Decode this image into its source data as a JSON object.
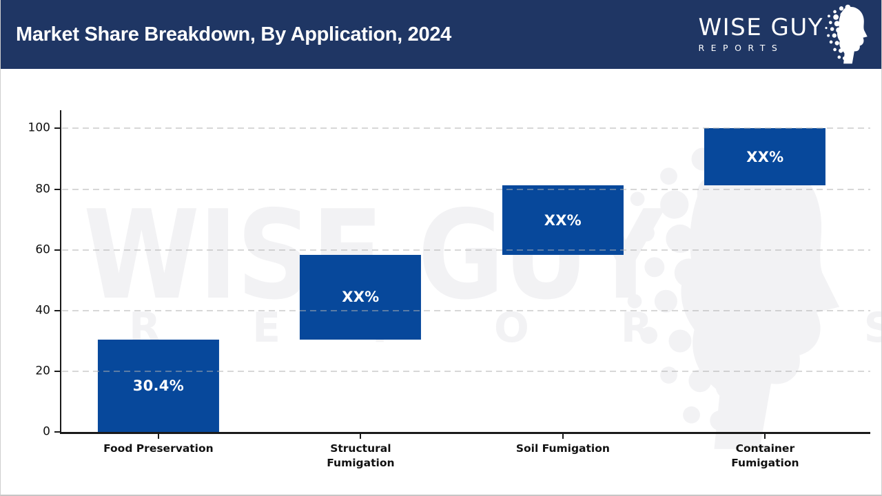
{
  "header": {
    "title": "Market Share Breakdown, By Application, 2024",
    "logo": {
      "name": "WISE GUY",
      "tagline": "REPORTS",
      "icon": "dotted-head-profile-icon"
    }
  },
  "watermark": {
    "name": "WISE GUY",
    "tagline": "R E P O R T S",
    "icon": "dotted-head-profile-icon"
  },
  "colors": {
    "header_bg": "#1f3664",
    "bar": "#07489b",
    "bar_label": "#ffffff",
    "gridline": "#d9d9d9",
    "axis": "#1a1a1a",
    "watermark": "#f2f2f4",
    "title_text": "#ffffff",
    "tick_text": "#111111"
  },
  "chart_data": {
    "type": "bar",
    "subtype": "waterfall-segments",
    "title": "Market Share Breakdown, By Application, 2024",
    "xlabel": "",
    "ylabel": "",
    "categories": [
      "Food Preservation",
      "Structural\nFumigation",
      "Soil Fumigation",
      "Container\nFumigation"
    ],
    "bars": [
      {
        "category": "Food Preservation",
        "start": 0,
        "end": 30.4,
        "label": "30.4%"
      },
      {
        "category": "Structural\nFumigation",
        "start": 30.4,
        "end": 58.4,
        "label": "XX%"
      },
      {
        "category": "Soil Fumigation",
        "start": 58.4,
        "end": 81.2,
        "label": "XX%"
      },
      {
        "category": "Container\nFumigation",
        "start": 81.2,
        "end": 100,
        "label": "XX%"
      }
    ],
    "yticks": [
      0,
      20,
      40,
      60,
      80,
      100
    ],
    "ylim": [
      0,
      106
    ],
    "grid": "horizontal-dashed",
    "legend_position": "none"
  }
}
